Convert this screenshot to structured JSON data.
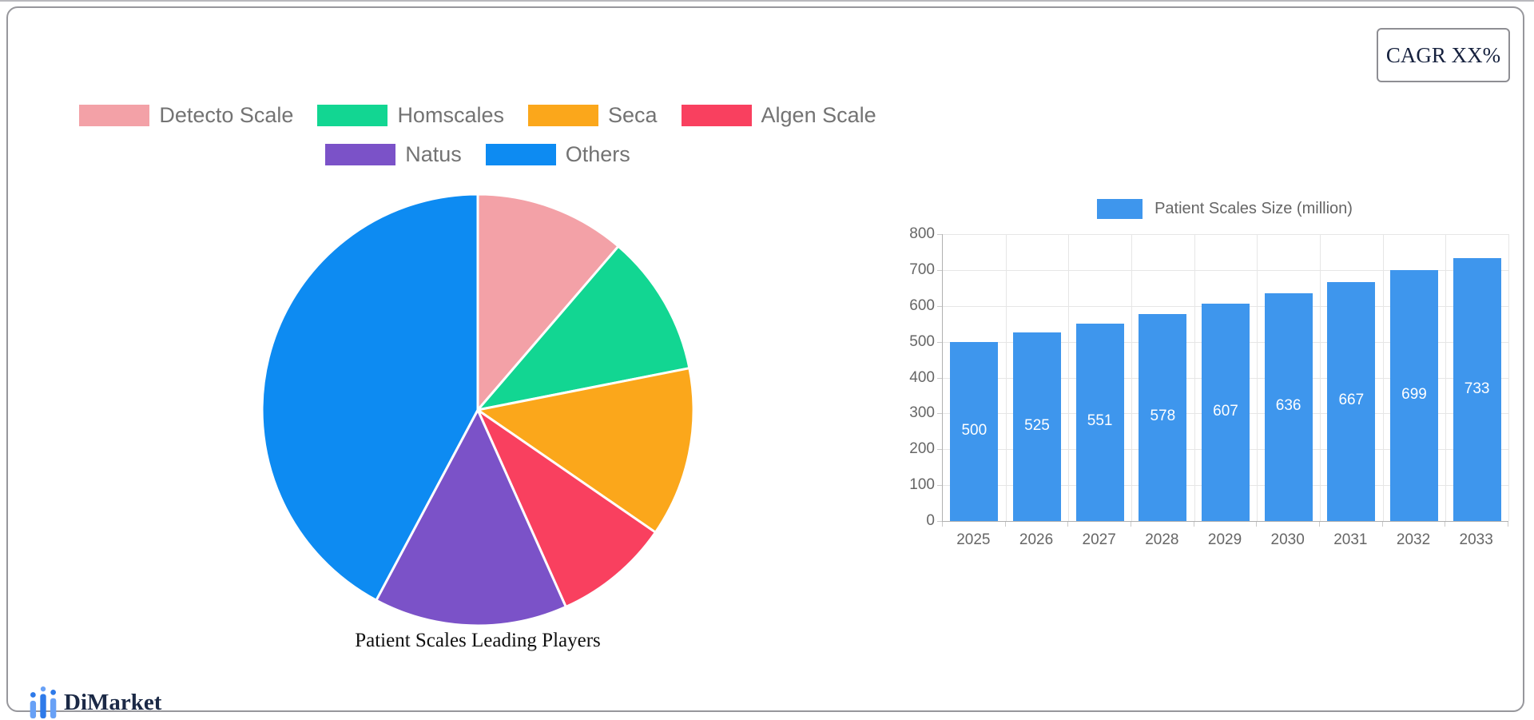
{
  "cagr_box": {
    "label": "CAGR XX%"
  },
  "logo": {
    "text": "DiMarket",
    "icon": "bar-chart-logo-icon",
    "icon_colors": [
      "#68A1F6",
      "#2E7AE9"
    ]
  },
  "colors": {
    "card_border": "#97979c",
    "legend_text": "#737373",
    "axis_text": "#666666",
    "grid_line": "#e6e6e6",
    "axis_line": "#b0b0b0",
    "serif_text": "#16213e"
  },
  "chart_data": [
    {
      "type": "pie",
      "title": "Patient Scales Leading Players",
      "labels": [
        "Detecto Scale",
        "Homscales",
        "Seca",
        "Algen Scale",
        "Natus",
        "Others"
      ],
      "values_pct": [
        11.3,
        10.6,
        12.7,
        8.7,
        14.5,
        42.2
      ],
      "colors": [
        "#F3A1A7",
        "#12D692",
        "#FBA71B",
        "#F9405F",
        "#7B52C8",
        "#0D8BF2"
      ],
      "legend_rows": [
        [
          "Detecto Scale",
          "Homscales",
          "Seca",
          "Algen Scale"
        ],
        [
          "Natus",
          "Others"
        ]
      ],
      "legend_position": "top",
      "start_angle_deg": 0,
      "direction": "clockwise",
      "slice_gap_color": "#ffffff"
    },
    {
      "type": "bar",
      "legend": "Patient Scales Size (million)",
      "categories": [
        "2025",
        "2026",
        "2027",
        "2028",
        "2029",
        "2030",
        "2031",
        "2032",
        "2033"
      ],
      "values": [
        500,
        525,
        551,
        578,
        607,
        636,
        667,
        699,
        733
      ],
      "bar_color": "#3E96ED",
      "value_label_color": "#ffffff",
      "ylim": [
        0,
        800
      ],
      "y_ticks": [
        0,
        100,
        200,
        300,
        400,
        500,
        600,
        700,
        800
      ],
      "grid": true,
      "legend_position": "top",
      "value_labels_inside_bars": true
    }
  ]
}
